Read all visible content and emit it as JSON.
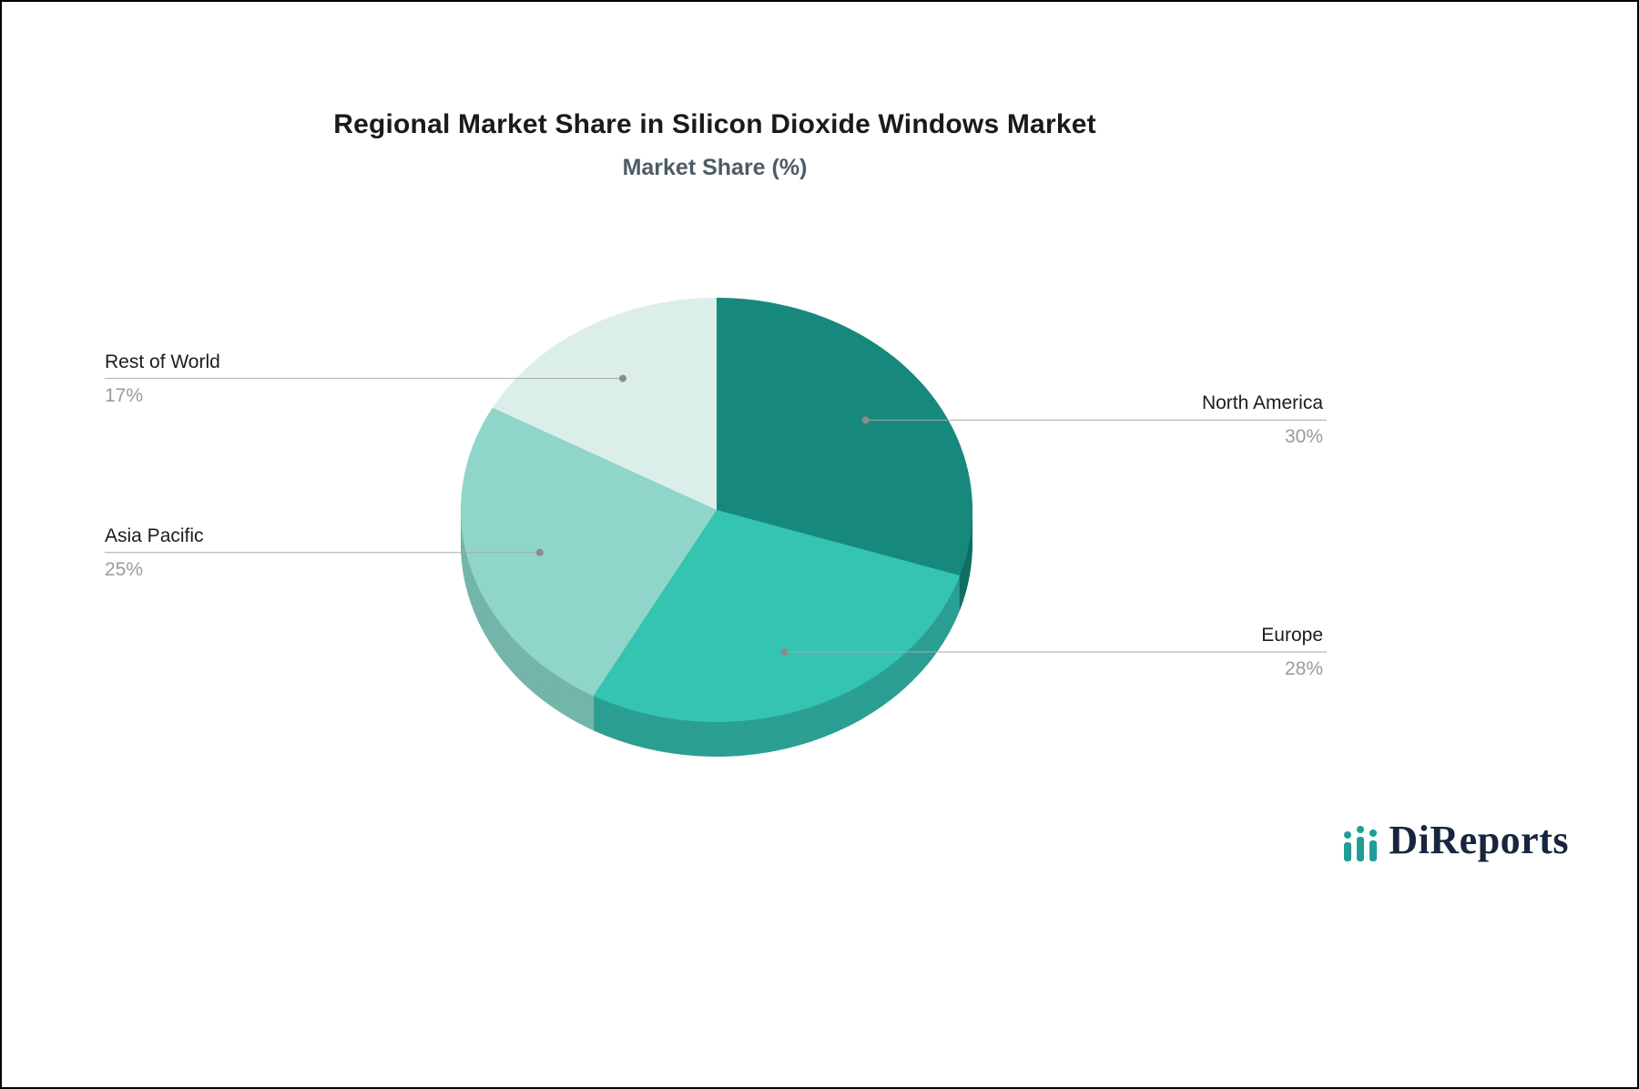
{
  "page": {
    "background": "#ffffff",
    "border_color": "#000000"
  },
  "chart_data": {
    "type": "pie",
    "title": "Regional Market Share in Silicon Dioxide Windows Market",
    "subtitle": "Market Share (%)",
    "unit": "%",
    "direction": "clockwise",
    "start_angle_deg": 0,
    "legend_position": "none",
    "style_3d": true,
    "labels_style": {
      "name_color": "#1c1c1c",
      "value_color": "#9b9b9b",
      "line_color": "#aaaaaa",
      "dot_color": "#8c8c8c"
    },
    "slices": [
      {
        "label": "North America",
        "value": 30,
        "display": "30%",
        "color": "#17897c",
        "side_color": "#106e63"
      },
      {
        "label": "Europe",
        "value": 28,
        "display": "28%",
        "color": "#35c3b2",
        "side_color": "#2a9f92"
      },
      {
        "label": "Asia Pacific",
        "value": 25,
        "display": "25%",
        "color": "#8fd5c9",
        "side_color": "#74b5aa"
      },
      {
        "label": "Rest of World",
        "value": 17,
        "display": "17%",
        "color": "#dceeea",
        "side_color": "#b6cdc8"
      }
    ]
  },
  "branding": {
    "logo_text": "DiReports",
    "logo_color": "#17253f",
    "icon_color": "#1f9e96",
    "icon_name": "bar-chart-icon"
  }
}
